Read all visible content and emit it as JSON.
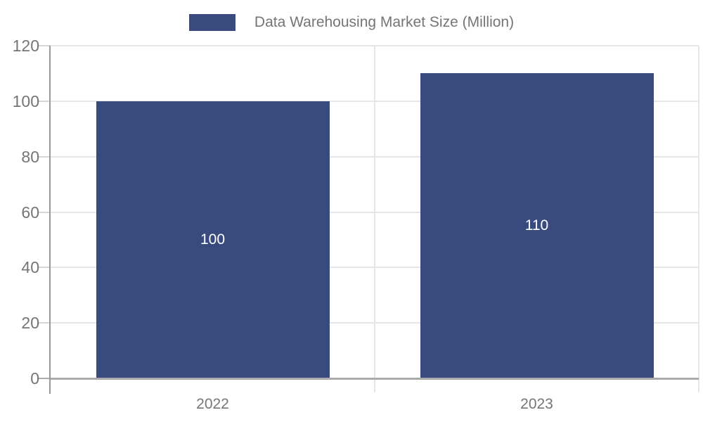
{
  "legend": {
    "swatch_icon": "legend-color-swatch"
  },
  "colors": {
    "bar": "#394b7e",
    "axis_text": "#757575",
    "grid": "#e6e6e6",
    "tick": "#d6d6d6",
    "axis_line": "#9a9a9a",
    "baseline": "#ababab",
    "value_label": "#ffffff",
    "background": "#ffffff"
  },
  "chart_data": {
    "type": "bar",
    "title": "Data Warehousing Market Size (Million)",
    "categories": [
      "2022",
      "2023"
    ],
    "series": [
      {
        "name": "Data Warehousing Market Size (Million)",
        "values": [
          100,
          110
        ]
      }
    ],
    "data_labels": [
      "100",
      "110"
    ],
    "xlabel": "",
    "ylabel": "",
    "ylim": [
      0,
      120
    ],
    "yticks": [
      0,
      20,
      40,
      60,
      80,
      100,
      120
    ],
    "grid": true,
    "legend_position": "top"
  }
}
